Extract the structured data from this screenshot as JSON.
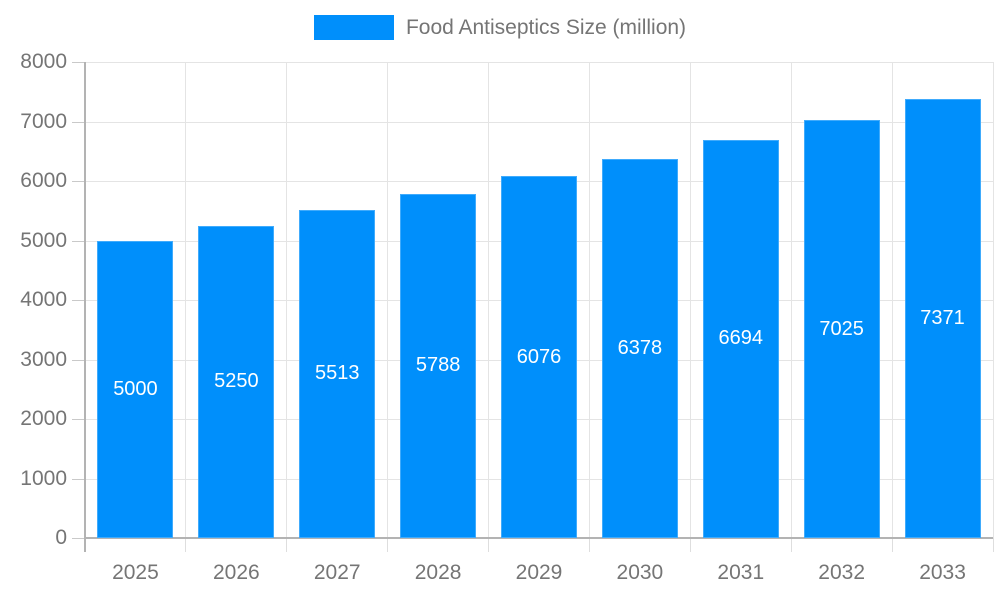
{
  "chart_data": {
    "type": "bar",
    "title": "Food Antiseptics Size (million)",
    "series_name": "Food Antiseptics Size (million)",
    "legend": {
      "label": "Food Antiseptics Size (million)",
      "position": "top"
    },
    "categories": [
      "2025",
      "2026",
      "2027",
      "2028",
      "2029",
      "2030",
      "2031",
      "2032",
      "2033"
    ],
    "values": [
      5000,
      5250,
      5513,
      5788,
      6076,
      6378,
      6694,
      7025,
      7371
    ],
    "xlabel": "",
    "ylabel": "",
    "ylim": [
      0,
      8000
    ],
    "ytick_step": 1000,
    "ytick_labels": [
      "0",
      "1000",
      "2000",
      "3000",
      "4000",
      "5000",
      "6000",
      "7000",
      "8000"
    ],
    "grid": true,
    "value_labels_inside_bars": true,
    "colors": {
      "bar": "#008FFB",
      "bar_value_text": "#ffffff",
      "axis_text": "#757575",
      "gridline": "#e4e4e4",
      "axis_line": "#b3b3b3",
      "background": "#ffffff"
    }
  }
}
